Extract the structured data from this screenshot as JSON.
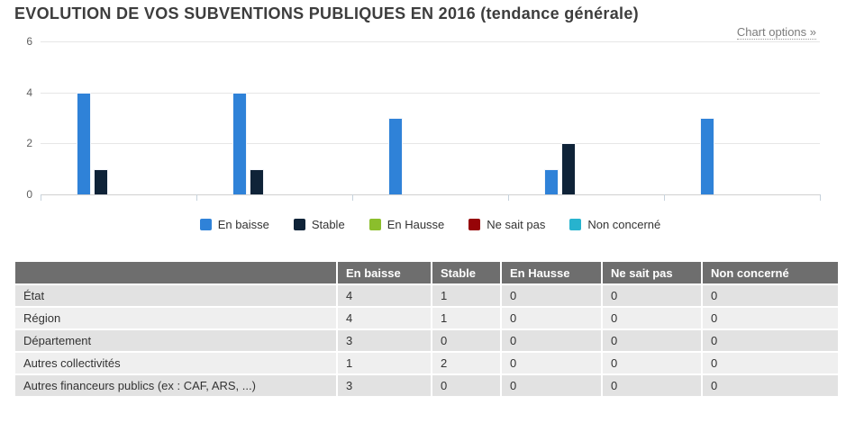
{
  "header": {
    "title": "EVOLUTION DE VOS SUBVENTIONS PUBLIQUES EN 2016 (tendance générale)",
    "chart_options_label": "Chart options »"
  },
  "chart_data": {
    "type": "bar",
    "title": "EVOLUTION DE VOS SUBVENTIONS PUBLIQUES EN 2016 (tendance générale)",
    "categories": [
      "État",
      "Région",
      "Département",
      "Autres collectivités",
      "Autres financeurs publics (ex : CAF, ARS, ...)"
    ],
    "series": [
      {
        "name": "En baisse",
        "color": "#2f82d8",
        "values": [
          4,
          4,
          3,
          1,
          3
        ]
      },
      {
        "name": "Stable",
        "color": "#0f2338",
        "values": [
          1,
          1,
          0,
          2,
          0
        ]
      },
      {
        "name": "En Hausse",
        "color": "#8bbe2c",
        "values": [
          0,
          0,
          0,
          0,
          0
        ]
      },
      {
        "name": "Ne sait pas",
        "color": "#960407",
        "values": [
          0,
          0,
          0,
          0,
          0
        ]
      },
      {
        "name": "Non concerné",
        "color": "#27b3ce",
        "values": [
          0,
          0,
          0,
          0,
          0
        ]
      }
    ],
    "xlabel": "",
    "ylabel": "",
    "ylim": [
      0,
      6
    ],
    "yticks": [
      0,
      2,
      4,
      6
    ],
    "grid": true,
    "legend_position": "bottom"
  },
  "table": {
    "columns": [
      "",
      "En baisse",
      "Stable",
      "En Hausse",
      "Ne sait pas",
      "Non concerné"
    ],
    "rows": [
      {
        "label": "État",
        "values": [
          4,
          1,
          0,
          0,
          0
        ]
      },
      {
        "label": "Région",
        "values": [
          4,
          1,
          0,
          0,
          0
        ]
      },
      {
        "label": "Département",
        "values": [
          3,
          0,
          0,
          0,
          0
        ]
      },
      {
        "label": "Autres collectivités",
        "values": [
          1,
          2,
          0,
          0,
          0
        ]
      },
      {
        "label": "Autres financeurs publics (ex : CAF, ARS, ...)",
        "values": [
          3,
          0,
          0,
          0,
          0
        ]
      }
    ]
  }
}
